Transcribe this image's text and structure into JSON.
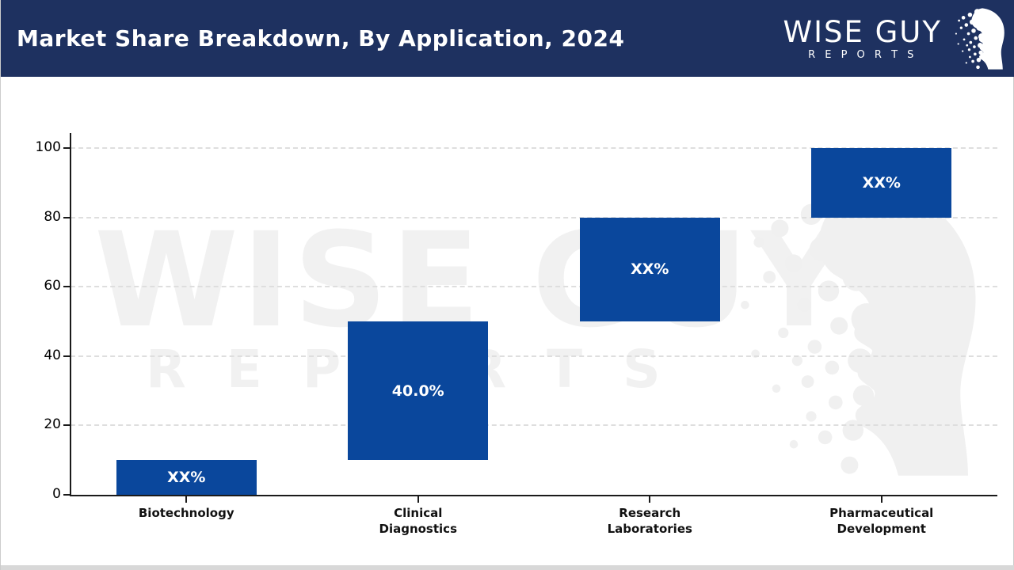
{
  "header": {
    "title": "Market Share Breakdown, By Application, 2024",
    "logo": {
      "line1": "WISE GUY",
      "line2": "R E P O R T S"
    }
  },
  "watermark": {
    "line1": "WISE GUY",
    "line2": "R E P O R T S"
  },
  "colors": {
    "header_bg": "#1e3160",
    "bar": "#0a479c",
    "grid": "#dedede",
    "axis": "#1a1a1a",
    "watermark": "#f1f1f1",
    "footer_strip": "#d8d8d8"
  },
  "chart_data": {
    "type": "bar",
    "variant": "floating-waterfall",
    "title": "Market Share Breakdown, By Application, 2024",
    "categories": [
      "Biotechnology",
      "Clinical\nDiagnostics",
      "Research\nLaboratories",
      "Pharmaceutical\nDevelopment"
    ],
    "segments": [
      {
        "category": "Biotechnology",
        "start": 0,
        "end": 10,
        "label": "XX%"
      },
      {
        "category": "Clinical Diagnostics",
        "start": 10,
        "end": 50,
        "label": "40.0%"
      },
      {
        "category": "Research Laboratories",
        "start": 50,
        "end": 80,
        "label": "XX%"
      },
      {
        "category": "Pharmaceutical Development",
        "start": 80,
        "end": 100,
        "label": "XX%"
      }
    ],
    "ylim": [
      0,
      100
    ],
    "yticks": [
      0,
      20,
      40,
      60,
      80,
      100
    ],
    "grid": "horizontal-dashed",
    "legend": null
  }
}
